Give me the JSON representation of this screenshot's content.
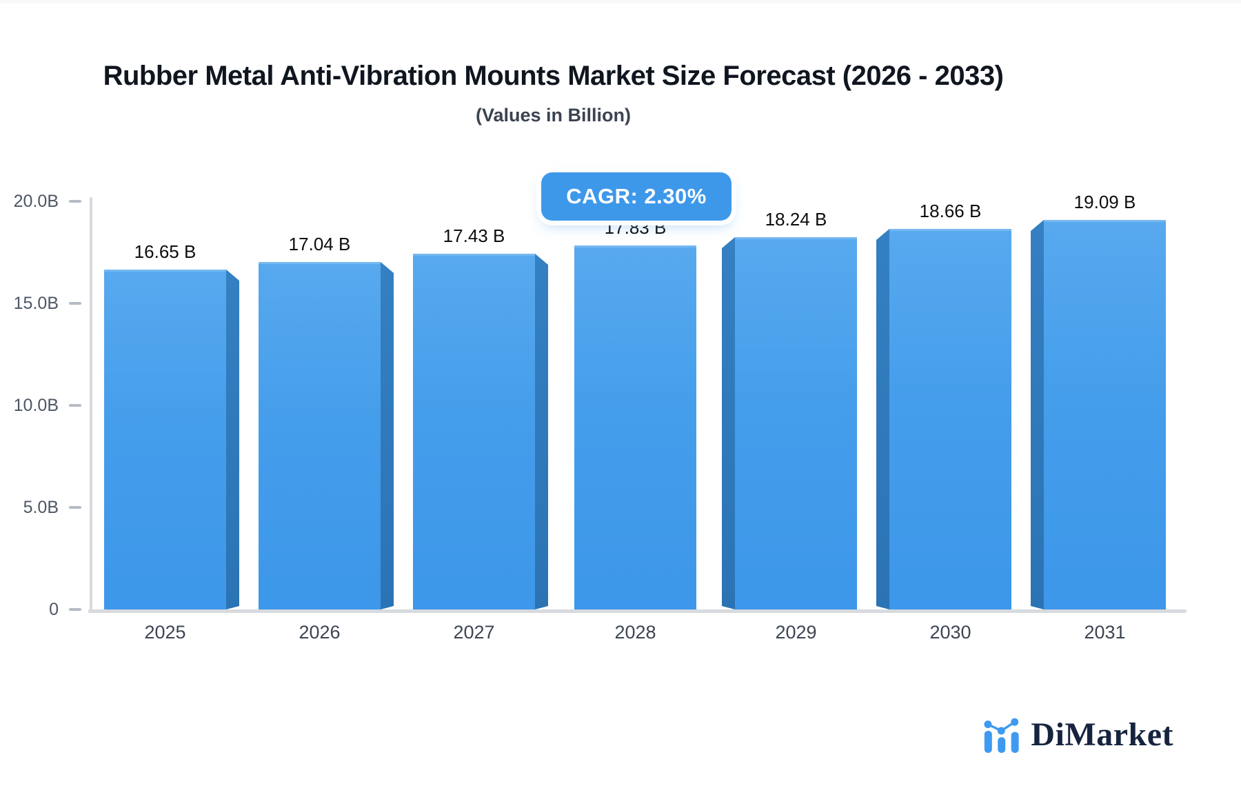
{
  "chart_data": {
    "type": "bar",
    "title": "Rubber Metal Anti-Vibration Mounts Market Size Forecast (2026 - 2033)",
    "subtitle": "(Values in Billion)",
    "categories": [
      "2025",
      "2026",
      "2027",
      "2028",
      "2029",
      "2030",
      "2031"
    ],
    "values": [
      16.65,
      17.04,
      17.43,
      17.83,
      18.24,
      18.66,
      19.09
    ],
    "value_labels": [
      "16.65 B",
      "17.04 B",
      "17.43 B",
      "17.83 B",
      "18.24 B",
      "18.66 B",
      "19.09 B"
    ],
    "ylim": [
      0,
      20
    ],
    "yticks": [
      {
        "value": 0,
        "label": "0"
      },
      {
        "value": 5,
        "label": "5.0B"
      },
      {
        "value": 10,
        "label": "10.0B"
      },
      {
        "value": 15,
        "label": "15.0B"
      },
      {
        "value": 20,
        "label": "20.0B"
      }
    ],
    "grid": "off",
    "legend": "none",
    "cagr_label": "CAGR: 2.30%",
    "colors": {
      "bar_face_top": "#58a9ee",
      "bar_face_bottom": "#3d97ea",
      "bar_side": "#2d78ba",
      "badge_bg": "#3e98ea",
      "axis_line": "#d7dade",
      "tick_dash": "#b6bcc4"
    }
  },
  "brand": {
    "name": "DiMarket",
    "icon": "bar-chart-trend-icon",
    "icon_color": "#3e9af0",
    "text_color": "#16243f"
  }
}
